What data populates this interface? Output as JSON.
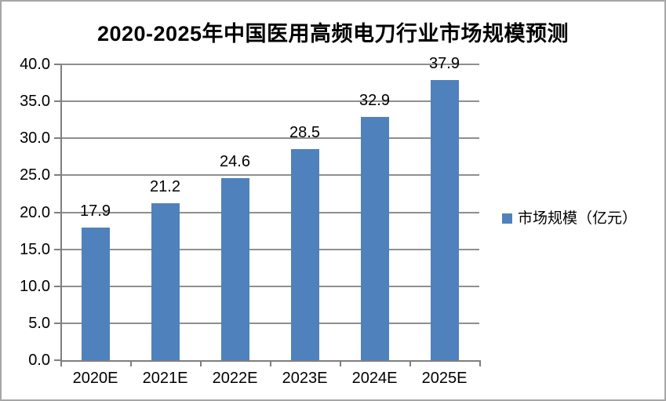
{
  "chart_data": {
    "type": "bar",
    "title": "2020-2025年中国医用高频电刀行业市场规模预测",
    "categories": [
      "2020E",
      "2021E",
      "2022E",
      "2023E",
      "2024E",
      "2025E"
    ],
    "series": [
      {
        "name": "市场规模（亿元）",
        "values": [
          17.9,
          21.2,
          24.6,
          28.5,
          32.9,
          37.9
        ]
      }
    ],
    "value_labels": [
      "17.9",
      "21.2",
      "24.6",
      "28.5",
      "32.9",
      "37.9"
    ],
    "xlabel": "",
    "ylabel": "",
    "ylim": [
      0,
      40
    ],
    "ytick_step": 5,
    "ytick_labels": [
      "0.0",
      "5.0",
      "10.0",
      "15.0",
      "20.0",
      "25.0",
      "30.0",
      "35.0",
      "40.0"
    ],
    "grid": true,
    "legend_position": "right",
    "colors": {
      "bar": "#4F81BD",
      "gridline": "#8F8F8F",
      "axis": "#7F7F7F",
      "text": "#000000",
      "frame_border": "#A6A6A6",
      "background": "#FFFFFF"
    }
  }
}
